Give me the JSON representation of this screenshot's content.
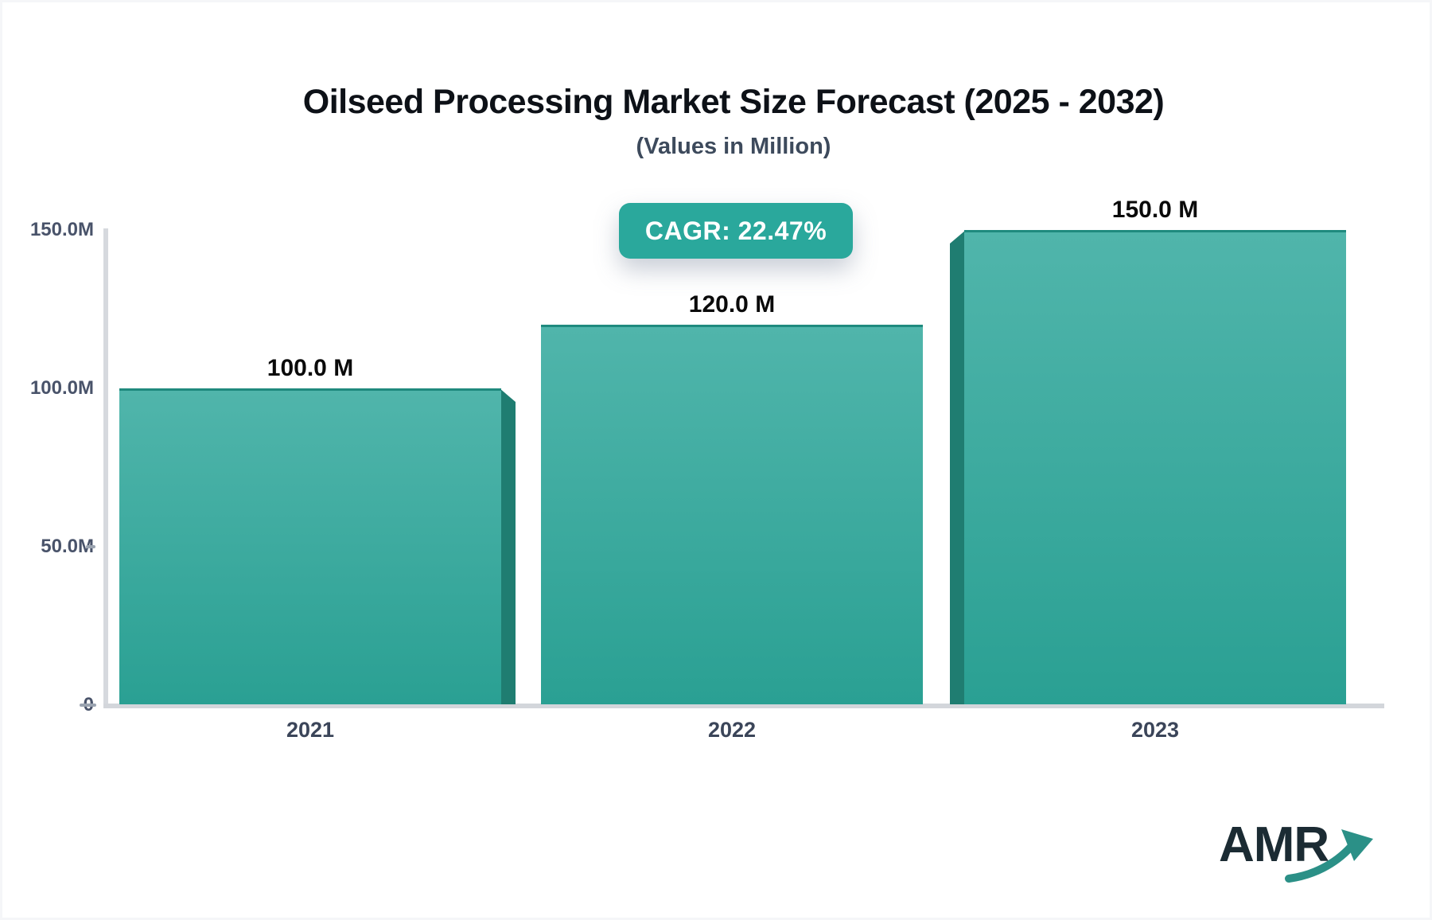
{
  "title": "Oilseed Processing Market Size Forecast (2025 - 2032)",
  "subtitle": "(Values in Million)",
  "badge": {
    "label": "CAGR: 22.47%"
  },
  "logo": {
    "text": "AMR"
  },
  "colors": {
    "accent_teal": "#2aa89c",
    "bar_gradient_top": "#50b5ab",
    "bar_gradient_bottom": "#2aa093",
    "bar_side_shadow": "#1f7d71",
    "bar_top_border": "#1f8a7e",
    "axis_gray": "#d6d9de",
    "logo_swoosh": "#2b9087"
  },
  "chart_data": {
    "type": "bar",
    "categories": [
      "2021",
      "2022",
      "2023"
    ],
    "values": [
      100,
      120,
      150
    ],
    "value_labels": [
      "100.0 M",
      "120.0 M",
      "150.0 M"
    ],
    "unit": "Million",
    "title": "Oilseed Processing Market Size Forecast (2025 - 2032)",
    "subtitle": "(Values in Million)",
    "xlabel": "",
    "ylabel": "",
    "ylim": [
      0,
      150
    ],
    "yticks": [
      {
        "value": 150,
        "label": "150.0M",
        "dash": false
      },
      {
        "value": 100,
        "label": "100.0M",
        "dash": false
      },
      {
        "value": 50,
        "label": "50.0M",
        "dash": true
      },
      {
        "value": 0,
        "label": "0",
        "dash": true
      }
    ],
    "grid": false,
    "legend": false,
    "annotation": "CAGR: 22.47%",
    "bar_3d_sides": [
      "right",
      "none",
      "left"
    ]
  }
}
